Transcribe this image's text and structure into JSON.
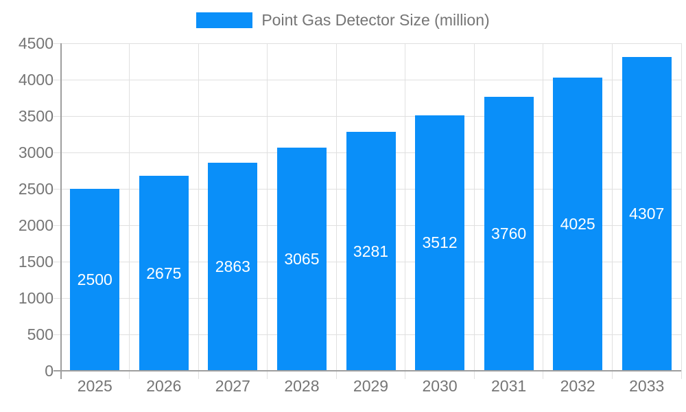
{
  "legend": {
    "label": "Point Gas Detector Size (million)"
  },
  "chart_data": {
    "type": "bar",
    "title": "Point Gas Detector Size (million)",
    "categories": [
      "2025",
      "2026",
      "2027",
      "2028",
      "2029",
      "2030",
      "2031",
      "2032",
      "2033"
    ],
    "values": [
      2500,
      2675,
      2863,
      3065,
      3281,
      3512,
      3760,
      4025,
      4307
    ],
    "xlabel": "",
    "ylabel": "",
    "ylim": [
      0,
      4500
    ],
    "ytick_step": 500,
    "grid": true,
    "legend_position": "top",
    "value_labels": "inside-center"
  },
  "colors": {
    "bar": "#0a8ff9",
    "axis_text": "#757575",
    "grid_line": "#e0e0e0",
    "axis_line": "#9e9e9e",
    "value_label": "#ffffff",
    "background": "#ffffff"
  }
}
